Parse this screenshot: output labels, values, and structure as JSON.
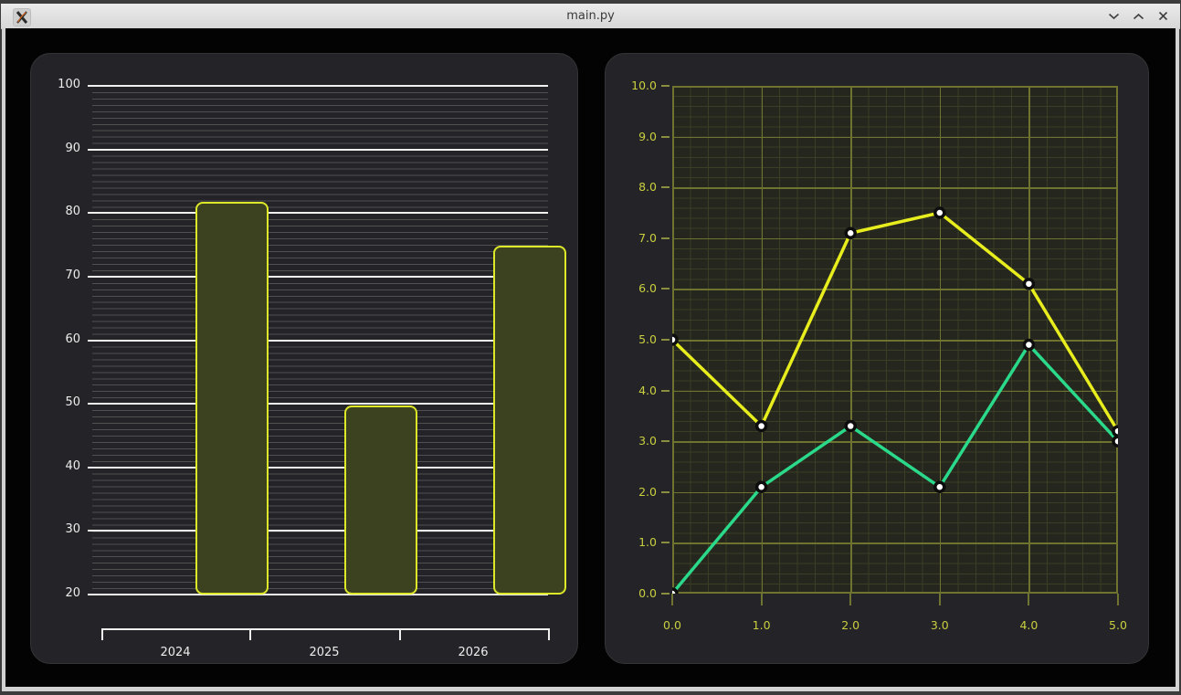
{
  "window": {
    "title": "main.py",
    "icon": "xorg-logo-icon",
    "controls": [
      {
        "name": "minimize-button",
        "icon": "chevron-down-icon"
      },
      {
        "name": "maximize-button",
        "icon": "chevron-up-icon"
      },
      {
        "name": "close-button",
        "icon": "close-icon"
      }
    ]
  },
  "colors": {
    "bar_fill": "#3c421f",
    "bar_border": "#dde829",
    "series_yellow": "#e8ee1d",
    "series_green": "#2bd98a",
    "bar_label": "#ececec",
    "line_label": "#c9cf3e",
    "marker_fill": "#ffffff",
    "marker_ring": "#0d0d0d"
  },
  "chart_data": [
    {
      "type": "bar",
      "title": "",
      "categories": [
        "2024",
        "2025",
        "2026"
      ],
      "values": [
        81.7,
        49.8,
        74.8
      ],
      "xlabel": "",
      "ylabel": "",
      "ylim": [
        20,
        100
      ],
      "ytick_labels": [
        "100",
        "90",
        "80",
        "70",
        "60",
        "50",
        "40",
        "30",
        "20"
      ],
      "ytick_values": [
        100,
        90,
        80,
        70,
        60,
        50,
        40,
        30,
        20
      ],
      "grid": {
        "major_step": 10,
        "minor_step": 1,
        "orientation": "horizontal-only"
      },
      "legend": "none"
    },
    {
      "type": "line",
      "title": "",
      "x": [
        0,
        1,
        2,
        3,
        4,
        5
      ],
      "series": [
        {
          "name": "yellow-series",
          "color": "#e8ee1d",
          "values": [
            5.0,
            3.3,
            7.1,
            7.5,
            6.1,
            3.2
          ]
        },
        {
          "name": "green-series",
          "color": "#2bd98a",
          "values": [
            0.0,
            2.1,
            3.3,
            2.1,
            4.9,
            3.0
          ]
        }
      ],
      "xlabel": "",
      "ylabel": "",
      "xlim": [
        0,
        5
      ],
      "ylim": [
        0,
        10
      ],
      "xtick_labels": [
        "0.0",
        "1.0",
        "2.0",
        "3.0",
        "4.0",
        "5.0"
      ],
      "xtick_values": [
        0,
        1,
        2,
        3,
        4,
        5
      ],
      "ytick_labels": [
        "10.0",
        "9.0",
        "8.0",
        "7.0",
        "6.0",
        "5.0",
        "4.0",
        "3.0",
        "2.0",
        "1.0",
        "0.0"
      ],
      "ytick_values": [
        10,
        9,
        8,
        7,
        6,
        5,
        4,
        3,
        2,
        1,
        0
      ],
      "grid": {
        "x_major": 1.0,
        "x_minor": 0.2,
        "y_major": 1.0,
        "y_minor": 0.2,
        "grid_on": true
      },
      "legend": "none",
      "markers": "circle-white-black-ring"
    }
  ]
}
